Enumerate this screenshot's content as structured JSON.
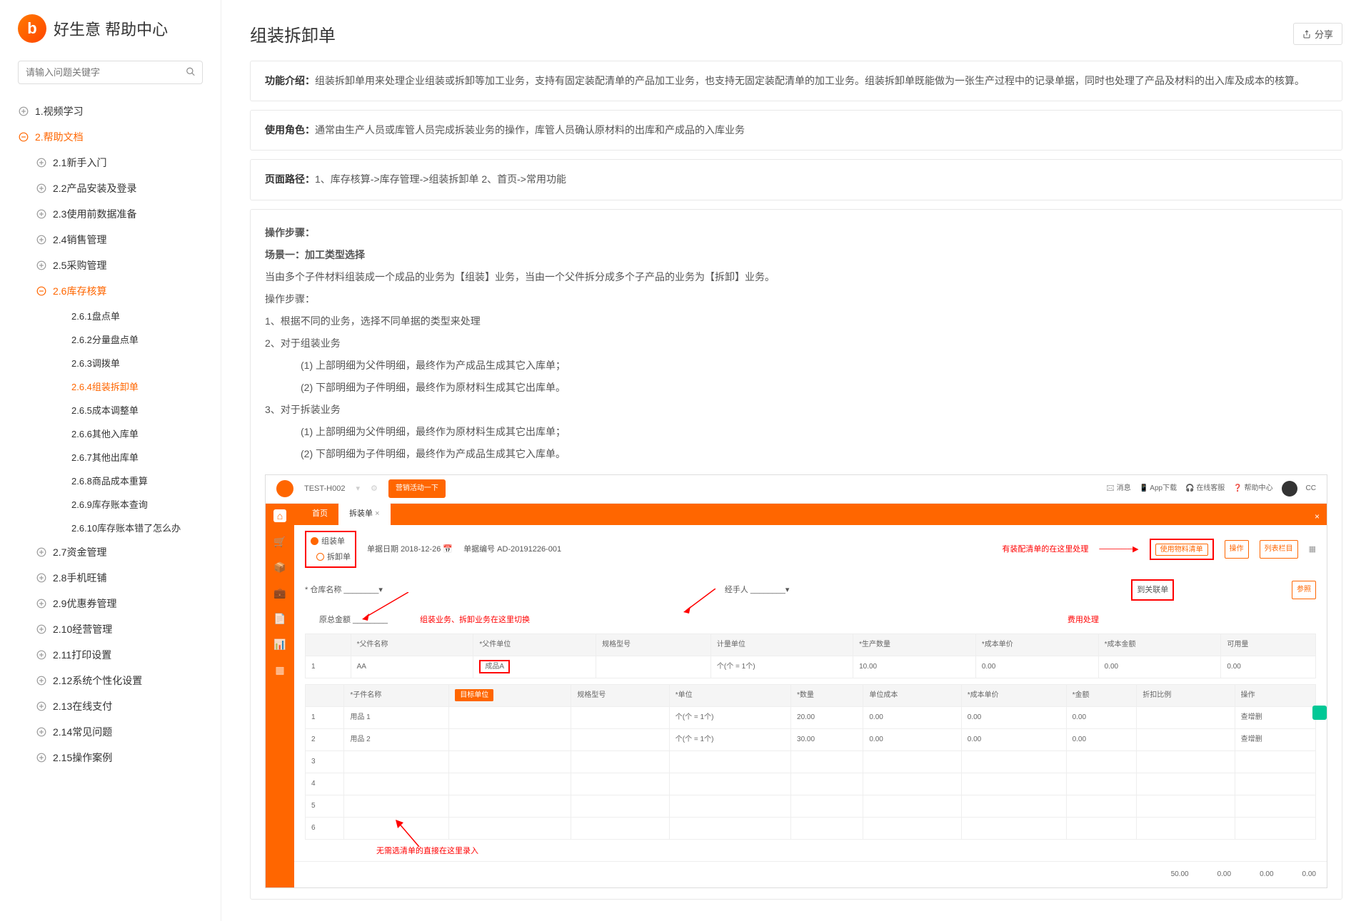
{
  "logo_text": "好生意 帮助中心",
  "search": {
    "placeholder": "请输入问题关键字"
  },
  "nav": {
    "video": "1.视频学习",
    "docs": "2.帮助文档",
    "docs_children": [
      {
        "label": "2.1新手入门"
      },
      {
        "label": "2.2产品安装及登录"
      },
      {
        "label": "2.3使用前数据准备"
      },
      {
        "label": "2.4销售管理"
      },
      {
        "label": "2.5采购管理"
      },
      {
        "label": "2.6库存核算",
        "expanded": true
      },
      {
        "label": "2.7资金管理"
      },
      {
        "label": "2.8手机旺铺"
      },
      {
        "label": "2.9优惠券管理"
      },
      {
        "label": "2.10经营管理"
      },
      {
        "label": "2.11打印设置"
      },
      {
        "label": "2.12系统个性化设置"
      },
      {
        "label": "2.13在线支付"
      },
      {
        "label": "2.14常见问题"
      },
      {
        "label": "2.15操作案例"
      }
    ],
    "kc_children": [
      "2.6.1盘点单",
      "2.6.2分量盘点单",
      "2.6.3调拨单",
      "2.6.4组装拆卸单",
      "2.6.5成本调整单",
      "2.6.6其他入库单",
      "2.6.7其他出库单",
      "2.6.8商品成本重算",
      "2.6.9库存账本查询",
      "2.6.10库存账本错了怎么办"
    ]
  },
  "page": {
    "title": "组装拆卸单",
    "share": "分享",
    "intro_label": "功能介绍：",
    "intro": "组装拆卸单用来处理企业组装或拆卸等加工业务，支持有固定装配清单的产品加工业务，也支持无固定装配清单的加工业务。组装拆卸单既能做为一张生产过程中的记录单据，同时也处理了产品及材料的出入库及成本的核算。",
    "role_label": "使用角色：",
    "role": "通常由生产人员或库管人员完成拆装业务的操作，库管人员确认原材料的出库和产成品的入库业务",
    "path_label": "页面路径：",
    "path": "1、库存核算->库存管理->组装拆卸单 2、首页->常用功能",
    "steps_title": "操作步骤：",
    "scene1": "场景一：加工类型选择",
    "scene1_desc": "当由多个子件材料组装成一个成品的业务为【组装】业务，当由一个父件拆分成多个子产品的业务为【拆卸】业务。",
    "ops_label": "操作步骤：",
    "step1": "1、根据不同的业务，选择不同单据的类型来处理",
    "step2": "2、对于组装业务",
    "step2_1": "(1) 上部明细为父件明细，最终作为产成品生成其它入库单；",
    "step2_2": "(2) 下部明细为子件明细，最终作为原材料生成其它出库单。",
    "step3": "3、对于拆装业务",
    "step3_1": "(1) 上部明细为父件明细，最终作为原材料生成其它出库单；",
    "step3_2": "(2) 下部明细为子件明细，最终作为产成品生成其它入库单。"
  },
  "screenshot": {
    "test_label": "TEST-H002",
    "orange_btn": "营销活动一下",
    "top_links": [
      "消息",
      "App下载",
      "在线客服",
      "帮助中心",
      "CC"
    ],
    "tabs": [
      "首页",
      "拆装单"
    ],
    "radio1": "组装单",
    "radio2": "拆卸单",
    "date_label": "单据日期",
    "date_val": "2018-12-26",
    "doc_label": "单据编号",
    "doc_val": "AD-20191226-001",
    "annotation1": "有装配清单的在这里处理",
    "btn_bom": "使用物料清单",
    "btn_op": "操作",
    "btn_cols": "列表栏目",
    "warehouse": "仓库名称",
    "handler": "经手人",
    "rel_doc": "到关联单",
    "ref_btn": "参照",
    "origin_label": "原总金额",
    "annotation2": "组装业务、拆卸业务在这里切换",
    "annotation3": "费用处理",
    "annotation4": "无需选清单的直接在这里录入",
    "parent_headers": [
      "*父件名称",
      "*父件单位",
      "规格型号",
      "计量单位",
      "*生产数量",
      "*成本单价",
      "*成本金额",
      "可用量"
    ],
    "parent_row": [
      "AA",
      "成品A",
      "",
      "个(个 = 1个)",
      "10.00",
      "0.00",
      "0.00",
      "0.00"
    ],
    "child_headers": [
      "*子件名称",
      "目标单位",
      "规格型号",
      "*单位",
      "*数量",
      "单位成本",
      "*成本单价",
      "*金额",
      "折扣比例",
      "操作"
    ],
    "child_rows": [
      [
        "用品 1",
        "",
        "",
        "个(个 = 1个)",
        "20.00",
        "0.00",
        "0.00",
        "0.00",
        "",
        "查增删"
      ],
      [
        "用品 2",
        "",
        "",
        "个(个 = 1个)",
        "30.00",
        "0.00",
        "0.00",
        "0.00",
        "",
        "查增删"
      ]
    ],
    "totals": [
      "50.00",
      "0.00",
      "0.00",
      "0.00"
    ]
  }
}
